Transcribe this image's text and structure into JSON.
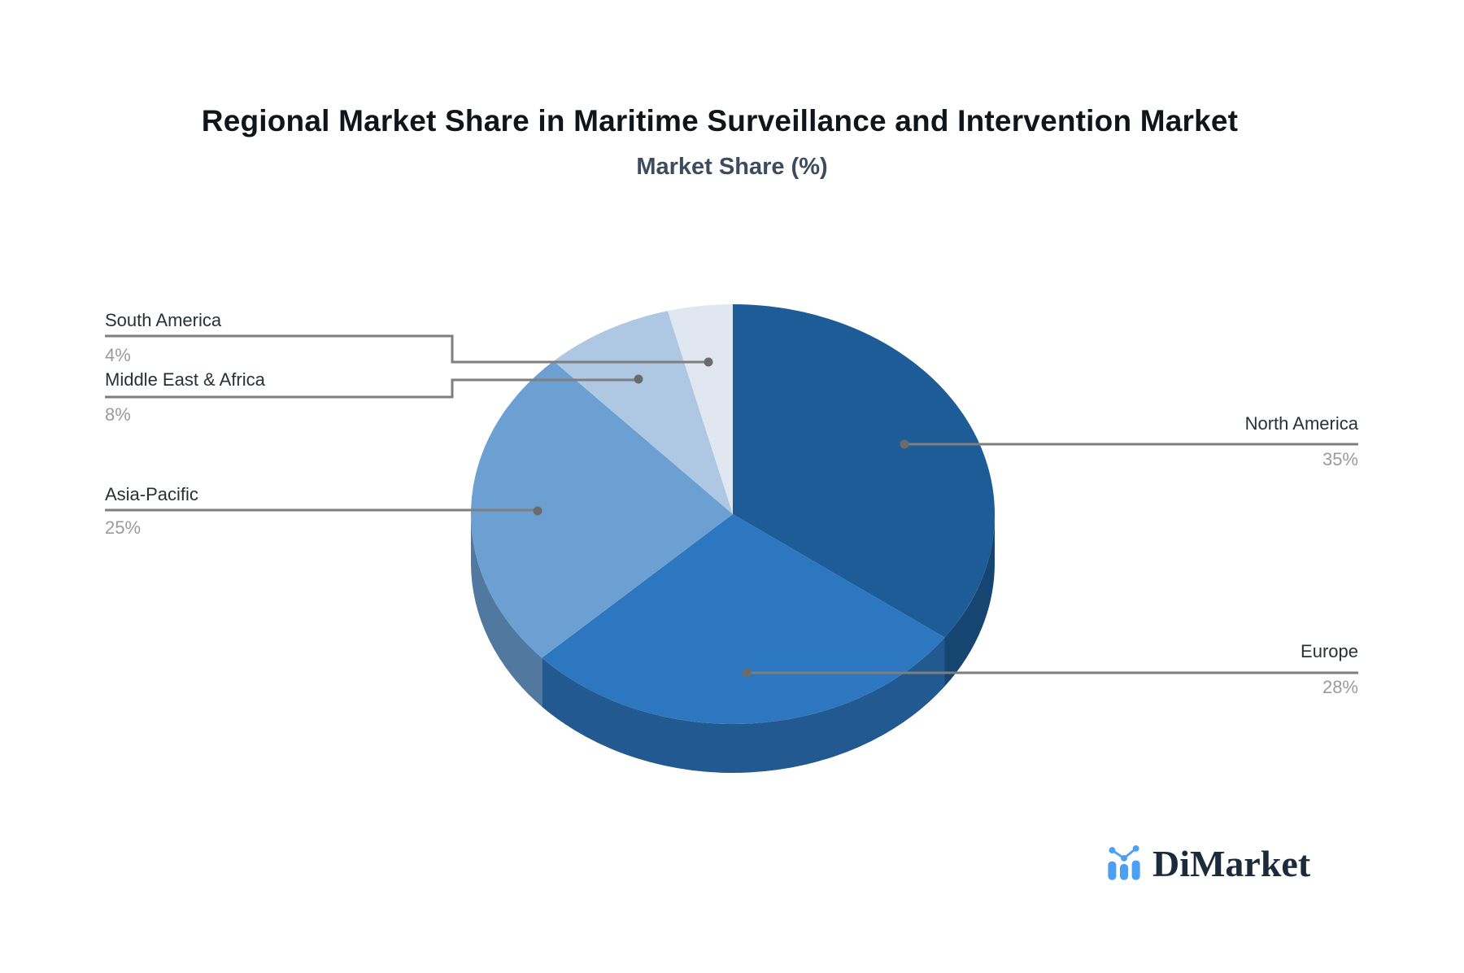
{
  "chart_data": {
    "type": "pie",
    "style_3d": true,
    "title": "Regional Market Share in Maritime Surveillance and Intervention Market",
    "subtitle": "Market Share (%)",
    "unit": "%",
    "start_angle_deg": 90,
    "direction": "clockwise",
    "legend": "none",
    "labels": [
      "North America",
      "Europe",
      "Asia-Pacific",
      "Middle East & Africa",
      "South America"
    ],
    "values": [
      35,
      28,
      25,
      8,
      4
    ],
    "colors": [
      "#1E5C97",
      "#2D77C0",
      "#6CA0D2",
      "#AEC8E3",
      "#E1E7F0"
    ],
    "leader_line_color": "#7E7E7E",
    "dot_color": "#6B6B6B"
  },
  "callouts": [
    {
      "name": "North America",
      "value_text": "35%"
    },
    {
      "name": "Europe",
      "value_text": "28%"
    },
    {
      "name": "Asia-Pacific",
      "value_text": "25%"
    },
    {
      "name": "Middle East & Africa",
      "value_text": "8%"
    },
    {
      "name": "South America",
      "value_text": "4%"
    }
  ],
  "header": {
    "title": "Regional Market Share in Maritime Surveillance and Intervention Market",
    "subtitle": "Market Share (%)"
  },
  "logo": {
    "brand": "DiMarket",
    "icon": "bar-line-chart-icon",
    "icon_color": "#4BA0F3",
    "text_color": "#1C2B3C"
  }
}
